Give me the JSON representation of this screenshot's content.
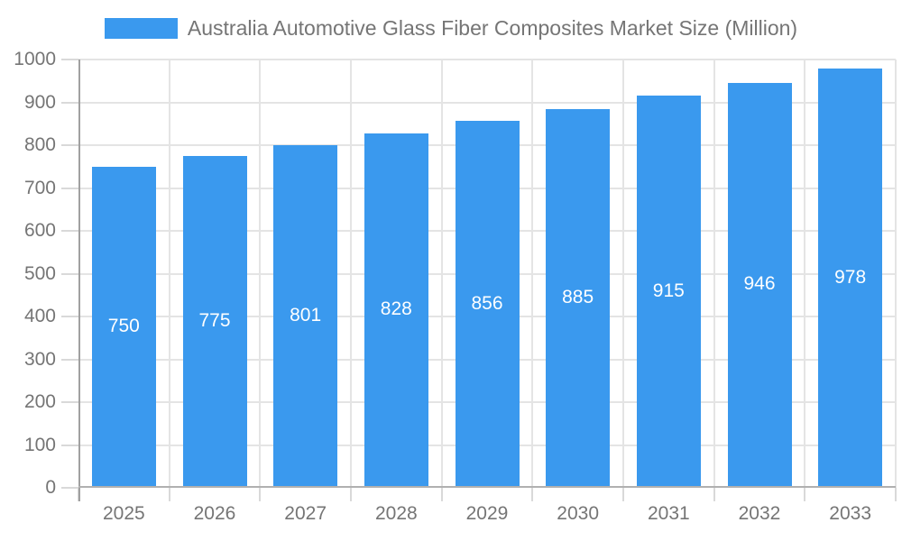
{
  "legend": {
    "label": "Australia Automotive Glass Fiber Composites Market Size (Million)"
  },
  "chart_data": {
    "type": "bar",
    "title": "Australia Automotive Glass Fiber Composites Market Size (Million)",
    "categories": [
      "2025",
      "2026",
      "2027",
      "2028",
      "2029",
      "2030",
      "2031",
      "2032",
      "2033"
    ],
    "values": [
      750,
      775,
      801,
      828,
      856,
      885,
      915,
      946,
      978
    ],
    "bar_labels": [
      "750",
      "775",
      "801",
      "828",
      "856",
      "885",
      "915",
      "946",
      "978"
    ],
    "xlabel": "",
    "ylabel": "",
    "ylim": [
      0,
      1000
    ],
    "yticks": [
      0,
      100,
      200,
      300,
      400,
      500,
      600,
      700,
      800,
      900,
      1000
    ],
    "grid": true,
    "legend_position": "top",
    "bar_label_position": "center"
  },
  "colors": {
    "bar": "#3a99ee",
    "bar_label": "#ffffff",
    "title_text": "#757575",
    "axis_label_text": "#757575",
    "gridline": "#e4e4e4",
    "axis_line": "#a6a6a6",
    "tick": "#d9d9d9",
    "background": "#ffffff"
  }
}
